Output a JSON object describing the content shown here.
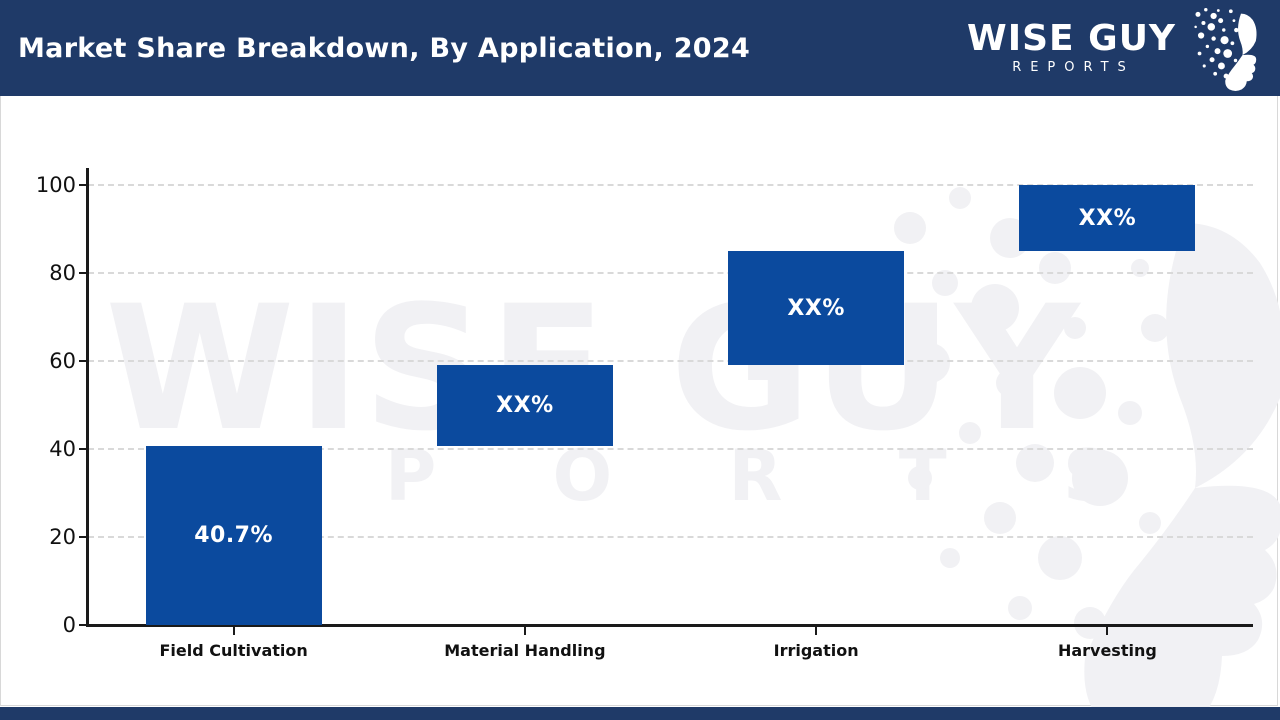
{
  "header": {
    "title": "Market Share Breakdown, By Application, 2024",
    "logo": {
      "line1": "WISE GUY",
      "line2": "REPORTS"
    }
  },
  "watermark": {
    "line1": "WISE GUY",
    "line2": "P O R T S"
  },
  "chart_data": {
    "type": "bar",
    "subtype": "waterfall",
    "title": "Market Share Breakdown, By Application, 2024",
    "categories": [
      "Field Cultivation",
      "Material Handling",
      "Irrigation",
      "Harvesting"
    ],
    "segments": [
      [
        0,
        40.7
      ],
      [
        40.7,
        59.0
      ],
      [
        59.0,
        85.0
      ],
      [
        85.0,
        100.0
      ]
    ],
    "bar_labels": [
      "40.7%",
      "XX%",
      "XX%",
      "XX%"
    ],
    "y_ticks": [
      "0",
      "20",
      "40",
      "60",
      "80",
      "100"
    ],
    "y_tick_values": [
      0,
      20,
      40,
      60,
      80,
      100
    ],
    "ylim": [
      0,
      104
    ],
    "xlabel": "",
    "ylabel": "",
    "grid": "horizontal-dashed",
    "legend": "none"
  },
  "colors": {
    "header_bg": "#1f3a68",
    "footer_bg": "#1f3a68",
    "bar_blue": "#0b4a9e",
    "axis": "#1a1a1a",
    "gridline": "#d9d9d9",
    "watermark": "#f1f1f4",
    "title_text": "#ffffff",
    "bar_label_text": "#ffffff"
  }
}
